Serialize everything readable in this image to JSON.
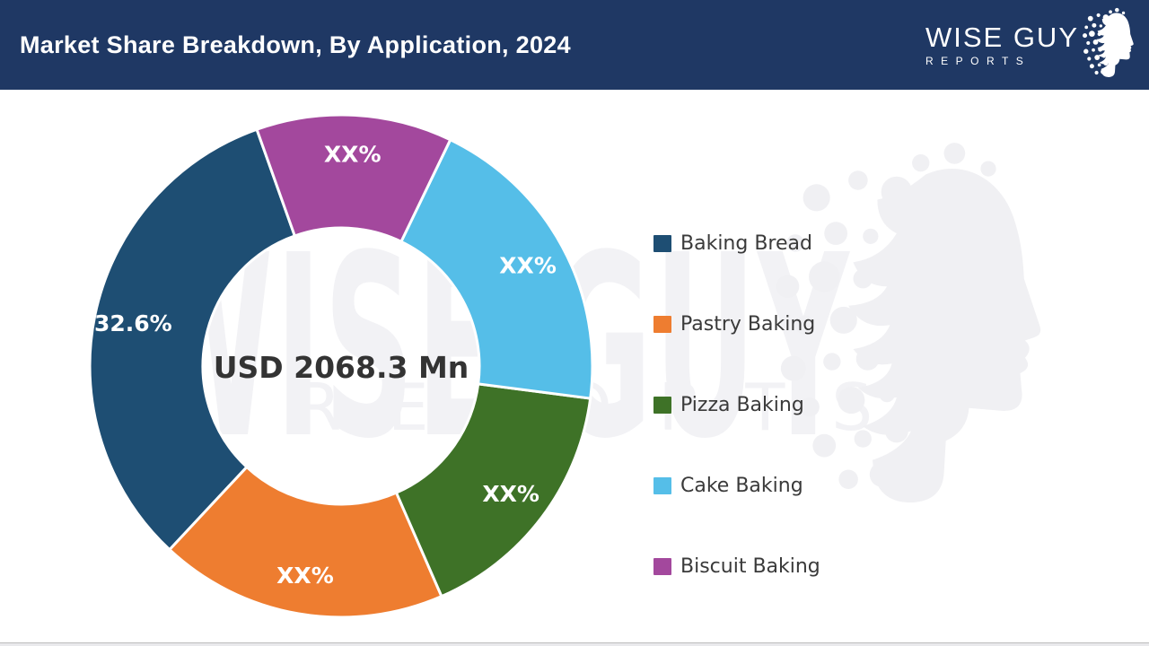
{
  "header": {
    "title": "Market Share Breakdown, By Application, 2024",
    "background_color": "#1f3864",
    "logo": {
      "line1": "WISE GUY",
      "line2": "REPORTS"
    }
  },
  "watermark": {
    "line1": "WISE GUY",
    "line2": "REPORTS"
  },
  "chart_data": {
    "type": "pie",
    "subtype": "donut",
    "title": "Market Share Breakdown, By Application, 2024",
    "center_label": "USD 2068.3 Mn",
    "start_angle_deg": 109.6,
    "direction": "counterclockwise",
    "donut_hole_ratio": 0.55,
    "legend_position": "right",
    "segments": [
      {
        "name": "Baking Bread",
        "value_pct": 32.6,
        "display_label": "32.6%",
        "color": "#1e4e73"
      },
      {
        "name": "Pastry Baking",
        "value_pct": 18.5,
        "display_label": "XX%",
        "color": "#ee7d30"
      },
      {
        "name": "Pizza Baking",
        "value_pct": 16.4,
        "display_label": "XX%",
        "color": "#3e7227"
      },
      {
        "name": "Cake Baking",
        "value_pct": 19.9,
        "display_label": "XX%",
        "color": "#55bee8"
      },
      {
        "name": "Biscuit Baking",
        "value_pct": 12.6,
        "display_label": "XX%",
        "color": "#a3489d"
      }
    ]
  }
}
